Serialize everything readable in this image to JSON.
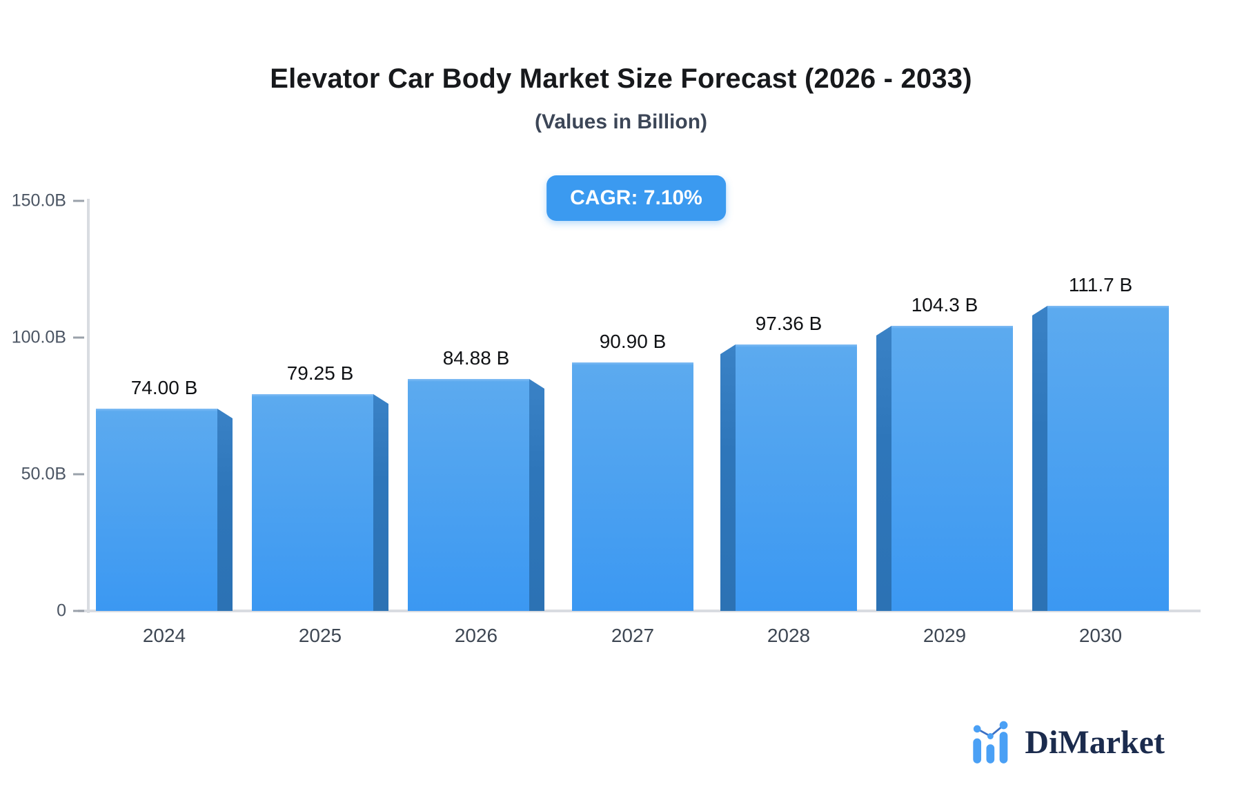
{
  "header": {
    "title": "Elevator Car Body Market Size Forecast (2026 - 2033)",
    "subtitle": "(Values in Billion)",
    "cagr_label": "CAGR: 7.10%"
  },
  "chart_data": {
    "type": "bar",
    "title": "Elevator Car Body Market Size Forecast (2026 - 2033)",
    "subtitle": "(Values in Billion)",
    "cagr": "7.10%",
    "unit": "Billion",
    "categories": [
      "2024",
      "2025",
      "2026",
      "2027",
      "2028",
      "2029",
      "2030"
    ],
    "values": [
      74.0,
      79.25,
      84.88,
      90.9,
      97.36,
      104.3,
      111.7
    ],
    "value_labels": [
      "74.00 B",
      "79.25 B",
      "84.88 B",
      "90.90 B",
      "97.36 B",
      "104.3 B",
      "111.7 B"
    ],
    "ylim": [
      0,
      150
    ],
    "yticks": [
      {
        "value": 150,
        "label": "150.0B"
      },
      {
        "value": 100,
        "label": "100.0B"
      },
      {
        "value": 50,
        "label": "50.0B"
      },
      {
        "value": 0,
        "label": "0"
      }
    ],
    "grid": false,
    "legend": "none",
    "bar_style": "3d-perspective-center",
    "colors": {
      "bar_face_top": "#5caaef",
      "bar_face_bottom": "#3b98f2",
      "bar_side": "#2e76ba",
      "badge_bg": "#3b9af0",
      "badge_text": "#ffffff",
      "axis_line": "#d9dce1",
      "tick_text": "#4b5563",
      "value_text": "#101215",
      "category_text": "#3e4753"
    }
  },
  "footer": {
    "brand_text": "DiMarket",
    "brand_color": "#1b2b4d",
    "brand_icon": "dimarket-bar-chart-logo-icon"
  }
}
